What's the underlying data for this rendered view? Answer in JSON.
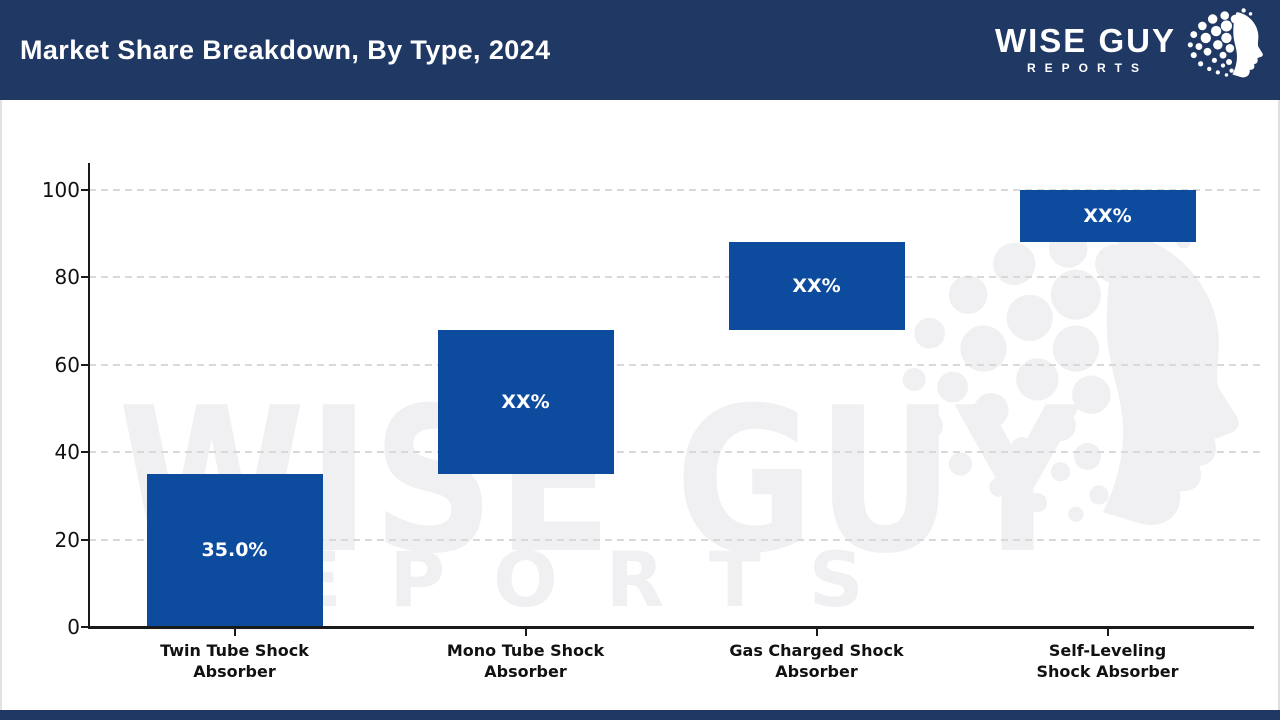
{
  "header": {
    "title": "Market Share Breakdown, By Type, 2024",
    "logo": {
      "line1": "WISE GUY",
      "line2": "REPORTS"
    }
  },
  "watermark": {
    "line1": "WISE GUY",
    "line2": "REPORTS"
  },
  "colors": {
    "header_bg": "#1f3864",
    "footer_bg": "#1f3864",
    "bar": "#0c4b9e",
    "bar_label": "#ffffff",
    "grid": "#d9d9d9",
    "axis": "#1a1a1a",
    "watermark": "#f0f0f2"
  },
  "chart_data": {
    "type": "bar",
    "subtype": "waterfall",
    "title": "Market Share Breakdown, By Type, 2024",
    "categories": [
      "Twin Tube Shock\nAbsorber",
      "Mono Tube Shock\nAbsorber",
      "Gas Charged Shock\nAbsorber",
      "Self-Leveling\nShock Absorber"
    ],
    "segments": [
      {
        "category": "Twin Tube Shock Absorber",
        "start": 0,
        "end": 35,
        "label": "35.0%"
      },
      {
        "category": "Mono Tube Shock Absorber",
        "start": 35,
        "end": 68,
        "label": "XX%"
      },
      {
        "category": "Gas Charged Shock Absorber",
        "start": 68,
        "end": 88,
        "label": "XX%"
      },
      {
        "category": "Self-Leveling Shock Absorber",
        "start": 88,
        "end": 100,
        "label": "XX%"
      }
    ],
    "ylim": [
      0,
      100
    ],
    "yticks": [
      0,
      20,
      40,
      60,
      80,
      100
    ],
    "xlabel": "",
    "ylabel": "",
    "grid": "horizontal-dashed",
    "legend": "none"
  }
}
